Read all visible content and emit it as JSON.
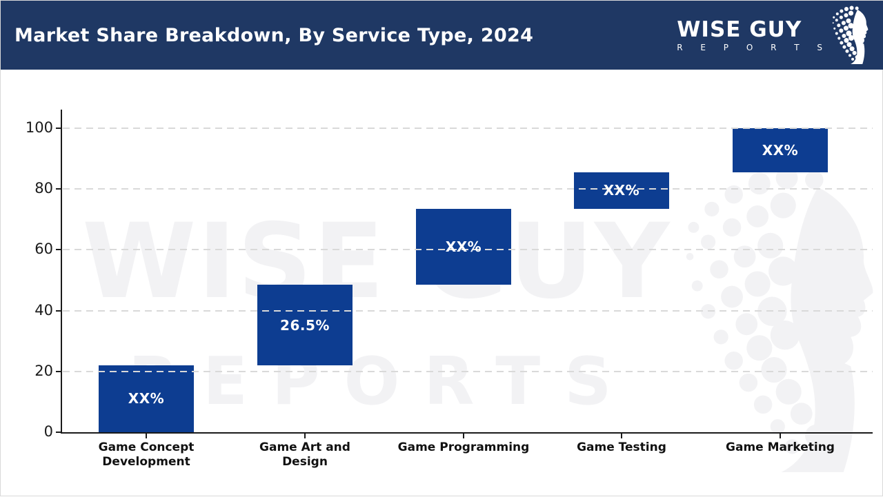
{
  "header": {
    "title": "Market Share Breakdown, By Service Type, 2024",
    "logo": {
      "brand_line1": "WISE GUY",
      "brand_line2": "R E P O R T S",
      "icon": "face-profile-dots-icon"
    }
  },
  "watermark": {
    "line1": "WISE GUY",
    "line2": "REPORTS",
    "icon": "face-profile-dots-icon"
  },
  "chart_data": {
    "type": "bar",
    "subtype": "floating-segment-waterfall",
    "title": "Market Share Breakdown, By Service Type, 2024",
    "categories": [
      "Game Concept Development",
      "Game Art and Design",
      "Game Programming",
      "Game Testing",
      "Game Marketing"
    ],
    "categories_display": [
      [
        "Game Concept",
        "Development"
      ],
      [
        "Game Art and",
        "Design"
      ],
      [
        "Game Programming"
      ],
      [
        "Game Testing"
      ],
      [
        "Game Marketing"
      ]
    ],
    "series": [
      {
        "name": "Market share (%)",
        "segments": [
          {
            "category": "Game Concept Development",
            "start": 0,
            "end": 22,
            "label": "XX%"
          },
          {
            "category": "Game Art and Design",
            "start": 22,
            "end": 48.5,
            "label": "26.5%"
          },
          {
            "category": "Game Programming",
            "start": 48.5,
            "end": 73.5,
            "label": "XX%"
          },
          {
            "category": "Game Testing",
            "start": 73.5,
            "end": 85.5,
            "label": "XX%"
          },
          {
            "category": "Game Marketing",
            "start": 85.5,
            "end": 100,
            "label": "XX%"
          }
        ]
      }
    ],
    "xlabel": "",
    "ylabel": "",
    "ylim": [
      0,
      106
    ],
    "yticks": [
      0,
      20,
      40,
      60,
      80,
      100
    ],
    "grid": "horizontal-dashed",
    "legend": "none"
  },
  "colors": {
    "header_bg": "#1f3864",
    "bar": "#0d3d91",
    "bar_label": "#ffffff",
    "grid": "#d9d9d9",
    "axis": "#1a1a1a",
    "watermark": "#f2f2f4",
    "background": "#ffffff"
  }
}
